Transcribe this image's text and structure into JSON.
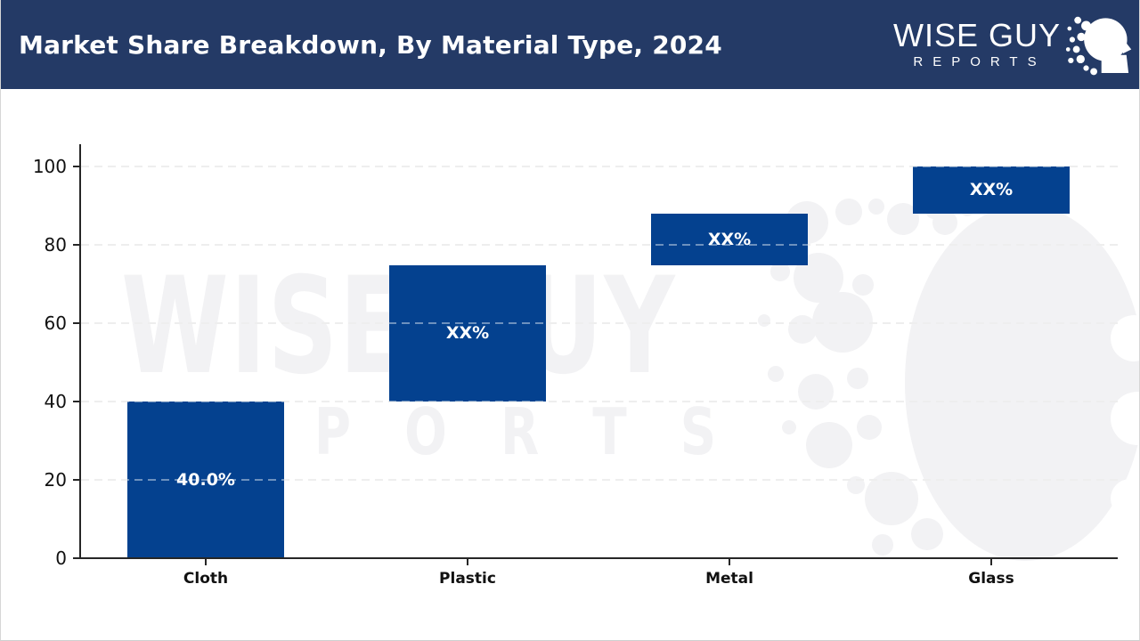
{
  "header": {
    "title": "Market Share Breakdown, By Material Type, 2024",
    "brand_line1": "WISE GUY",
    "brand_line2": "REPORTS"
  },
  "watermark": {
    "line1": "WISE GUY",
    "line2": "R E P O R T S"
  },
  "chart_data": {
    "type": "bar",
    "subtype": "waterfall",
    "title": "Market Share Breakdown, By Material Type, 2024",
    "categories": [
      "Cloth",
      "Plastic",
      "Metal",
      "Glass"
    ],
    "bars": [
      {
        "category": "Cloth",
        "start": 0,
        "end": 40,
        "value": 40.0,
        "label": "40.0%"
      },
      {
        "category": "Plastic",
        "start": 40,
        "end": 74.8,
        "value": 34.8,
        "label": "XX%"
      },
      {
        "category": "Metal",
        "start": 74.8,
        "end": 88,
        "value": 13.2,
        "label": "XX%"
      },
      {
        "category": "Glass",
        "start": 88,
        "end": 100,
        "value": 12.0,
        "label": "XX%"
      }
    ],
    "xlabel": "",
    "ylabel": "",
    "ylim": [
      0,
      100
    ],
    "yticks": [
      0,
      20,
      40,
      60,
      80,
      100
    ],
    "grid": {
      "horizontal": true,
      "style": "dashed",
      "color": "#e2e2e2"
    },
    "legend": null,
    "bar_color": "#04418f",
    "bar_label_color": "#ffffff",
    "axis_color": "#262626",
    "tick_label_color": "#111111",
    "header_bg": "#243a66"
  }
}
